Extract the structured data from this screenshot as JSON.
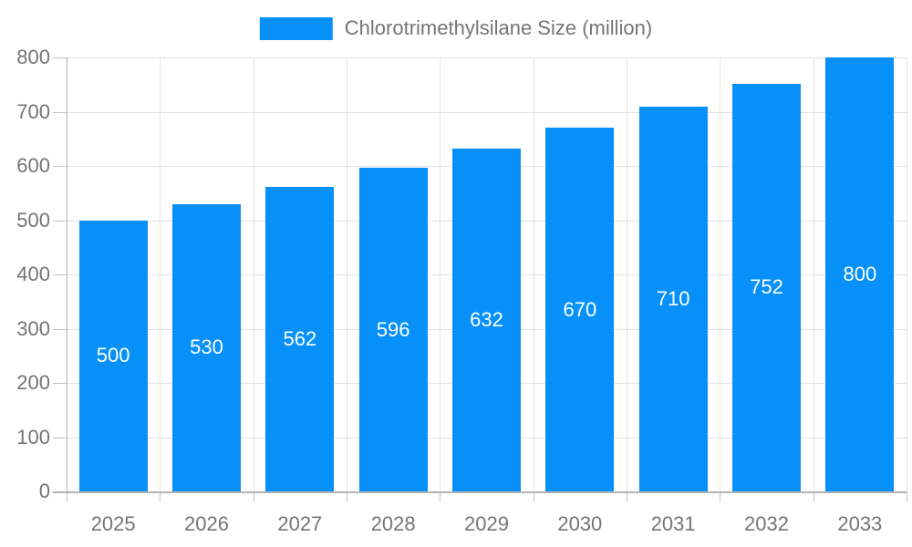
{
  "legend": {
    "label": "Chlorotrimethylsilane Size (million)"
  },
  "colors": {
    "bar": "#0690f8",
    "axis": "#b3b3b3",
    "grid": "#e2e2e2",
    "tick": "#c4c4c4",
    "label": "#757575",
    "value_label": "#ffffff",
    "background": "#ffffff"
  },
  "chart_data": {
    "type": "bar",
    "title": "Chlorotrimethylsilane Size (million)",
    "categories": [
      "2025",
      "2026",
      "2027",
      "2028",
      "2029",
      "2030",
      "2031",
      "2032",
      "2033"
    ],
    "values": [
      500,
      530,
      562,
      596,
      632,
      670,
      710,
      752,
      800
    ],
    "xlabel": "",
    "ylabel": "",
    "ylim": [
      0,
      800
    ],
    "ytick_step": 100,
    "ytick_labels": [
      "0",
      "100",
      "200",
      "300",
      "400",
      "500",
      "600",
      "700",
      "800"
    ],
    "grid": true,
    "legend_position": "top-center",
    "value_label_position": "inside-center"
  }
}
